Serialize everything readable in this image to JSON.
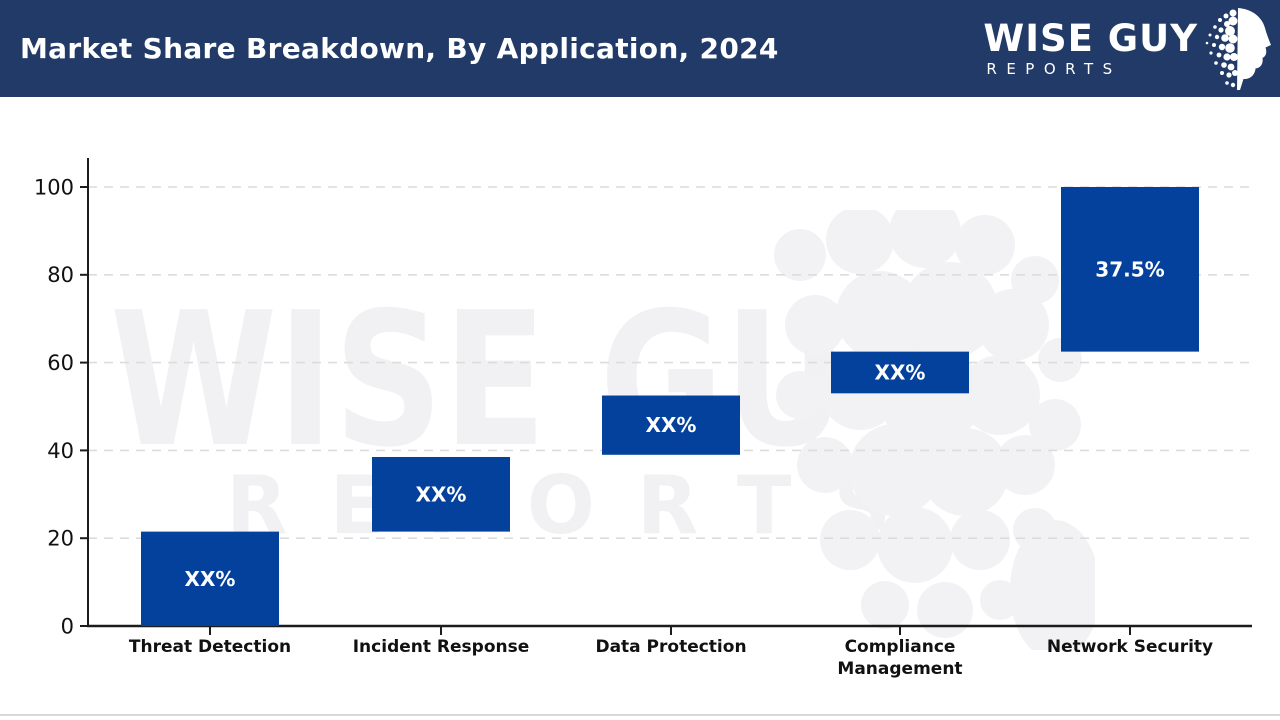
{
  "header": {
    "title": "Market Share Breakdown, By Application, 2024",
    "bg_color": "#223a68",
    "logo": {
      "line1": "WISE GUY",
      "line2": "REPORTS"
    }
  },
  "watermark": {
    "line1": "WISE GUY",
    "line2": "REPORTS"
  },
  "chart_data": {
    "type": "bar",
    "subtype": "waterfall",
    "title": "Market Share Breakdown, By Application, 2024",
    "categories": [
      "Threat Detection",
      "Incident Response",
      "Data Protection",
      "Compliance Management",
      "Network Security"
    ],
    "segments": [
      {
        "category": "Threat Detection",
        "start": 0,
        "end": 21.5,
        "label": "XX%"
      },
      {
        "category": "Incident Response",
        "start": 21.5,
        "end": 38.5,
        "label": "XX%"
      },
      {
        "category": "Data Protection",
        "start": 39,
        "end": 52.5,
        "label": "XX%"
      },
      {
        "category": "Compliance Management",
        "start": 53,
        "end": 62.5,
        "label": "XX%"
      },
      {
        "category": "Network Security",
        "start": 62.5,
        "end": 100,
        "label": "37.5%"
      }
    ],
    "ylim": [
      0,
      100
    ],
    "yticks": [
      0,
      20,
      40,
      60,
      80,
      100
    ],
    "xlabel": "",
    "ylabel": "",
    "grid": "dashed-horizontal",
    "legend": "none",
    "bar_color": "#04419c",
    "bar_label_color": "#ffffff",
    "grid_color": "#dcdcdc",
    "axis_color": "#1c1c1c",
    "tick_label_color": "#111111"
  }
}
